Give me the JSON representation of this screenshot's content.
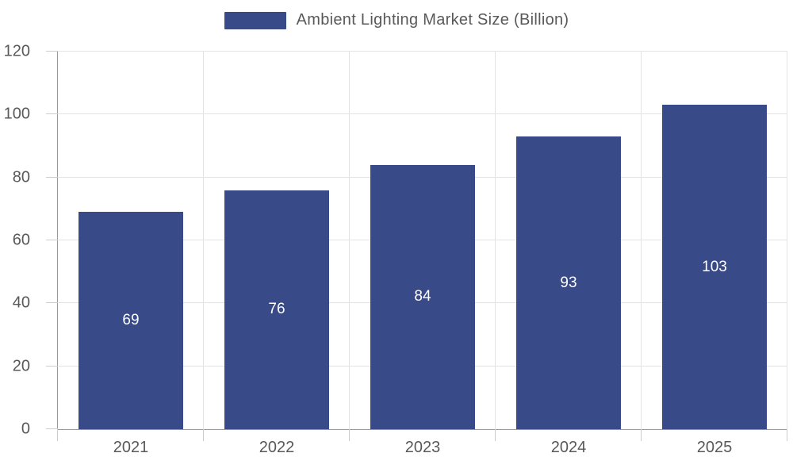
{
  "legend": {
    "label": "Ambient Lighting Market Size (Billion)"
  },
  "chart_data": {
    "type": "bar",
    "title": "Ambient Lighting Market Size (Billion)",
    "categories": [
      "2021",
      "2022",
      "2023",
      "2024",
      "2025"
    ],
    "values": [
      69,
      76,
      84,
      93,
      103
    ],
    "bar_labels": [
      "69",
      "76",
      "84",
      "93",
      "103"
    ],
    "xlabel": "",
    "ylabel": "",
    "ylim": [
      0,
      120
    ],
    "yticks": [
      0,
      20,
      40,
      60,
      80,
      100,
      120
    ],
    "grid": true,
    "legend_position": "top-center"
  },
  "colors": {
    "bar": "#384a87",
    "value_label": "#ffffff",
    "axis_text": "#595959",
    "axis_line": "#999999",
    "tick_line": "#cccccc",
    "gridline": "#e3e3e3",
    "background": "#ffffff"
  }
}
